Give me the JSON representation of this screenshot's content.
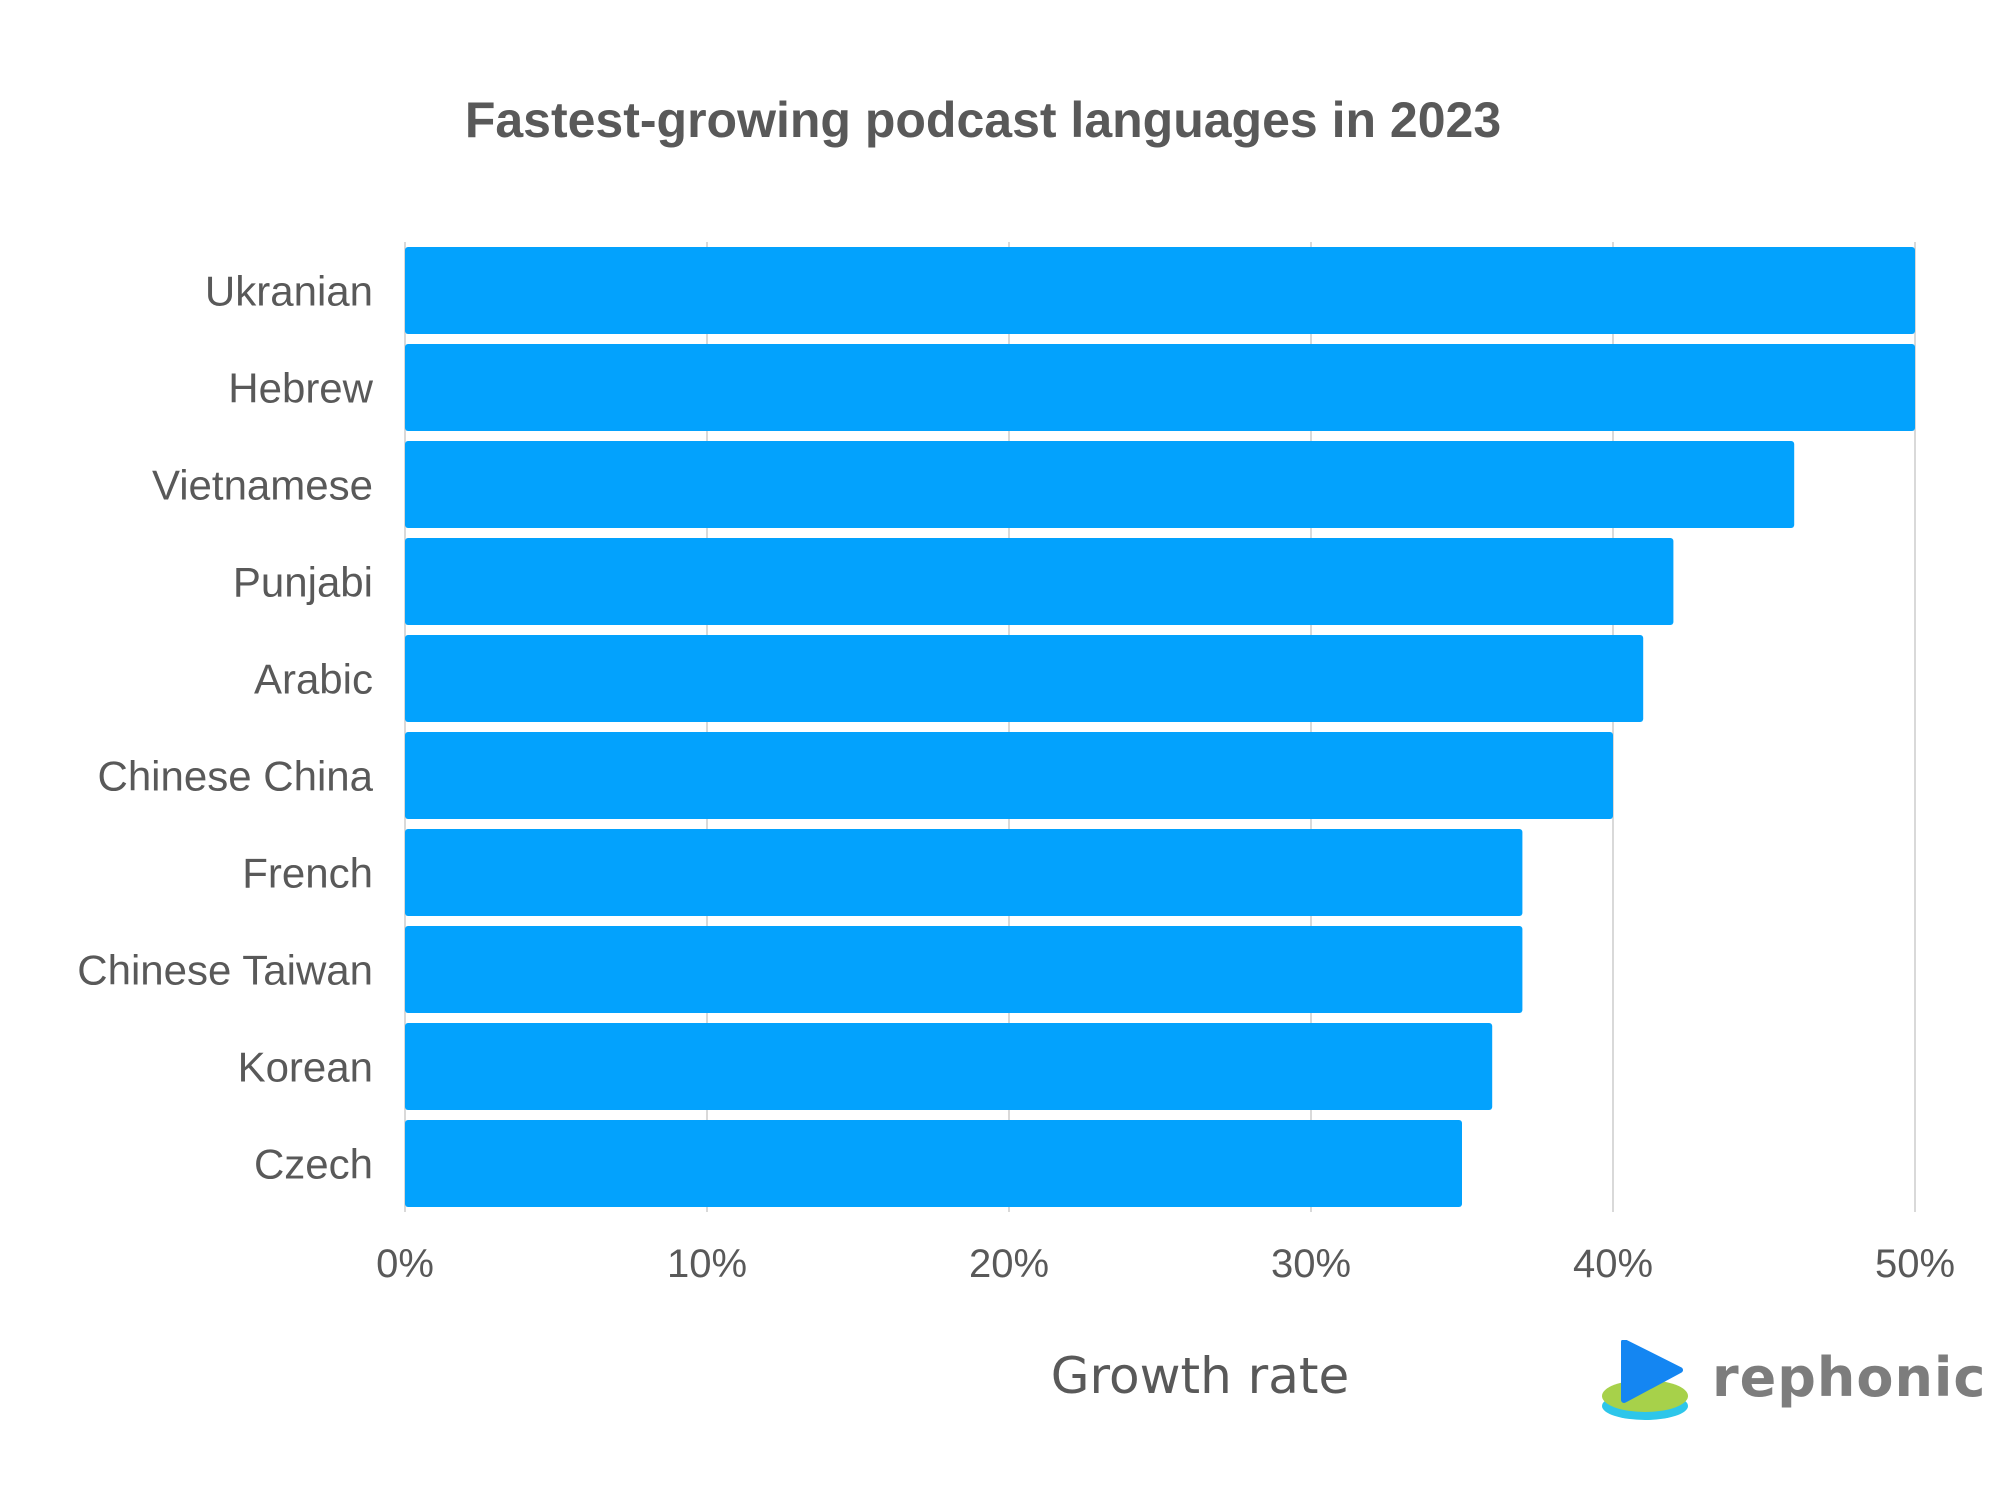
{
  "chart_data": {
    "type": "bar",
    "orientation": "horizontal",
    "title": "Fastest-growing podcast languages in 2023",
    "xlabel": "Growth rate",
    "ylabel": "",
    "categories": [
      "Ukranian",
      "Hebrew",
      "Vietnamese",
      "Punjabi",
      "Arabic",
      "Chinese China",
      "French",
      "Chinese Taiwan",
      "Korean",
      "Czech"
    ],
    "values": [
      50,
      50,
      46,
      42,
      41,
      40,
      37,
      37,
      36,
      35
    ],
    "xlim": [
      0,
      50
    ],
    "ticks": [
      0,
      10,
      20,
      30,
      40,
      50
    ],
    "tick_labels": [
      "0%",
      "10%",
      "20%",
      "30%",
      "40%",
      "50%"
    ],
    "grid": "vertical",
    "bar_color": "#03a2fd",
    "grid_color": "#d9d9d9",
    "text_color": "#595959"
  },
  "brand": {
    "name": "rephonic",
    "icon": "play-logo-icon"
  }
}
